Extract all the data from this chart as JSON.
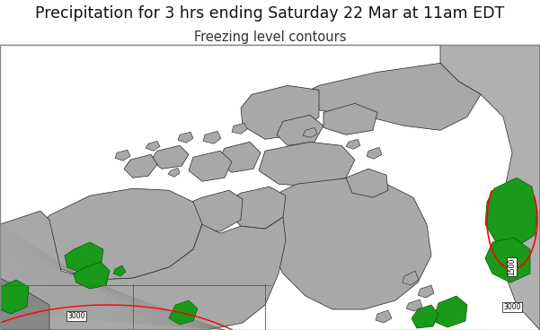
{
  "title": "Precipitation for 3 hrs ending Saturday 22 Mar at 11am EDT",
  "subtitle": "Freezing level contours",
  "title_fontsize": 12.5,
  "subtitle_fontsize": 10.5,
  "title_color": "#111111",
  "subtitle_color": "#333333",
  "header_bg": "#ffffff",
  "map_border_color": "#aaaaaa",
  "fig_width": 6.01,
  "fig_height": 3.68,
  "dpi": 100,
  "ocean_color": "#ccd4e8",
  "land_color": "#a8a8a8",
  "land_dark": "#888888",
  "greenland_color": "#b0b0b0",
  "green_precip": "#1a9a1a",
  "red_contour": "#ff0000",
  "header_border": "#ccccdd",
  "label_1500": "1500",
  "label_3000": "3000"
}
